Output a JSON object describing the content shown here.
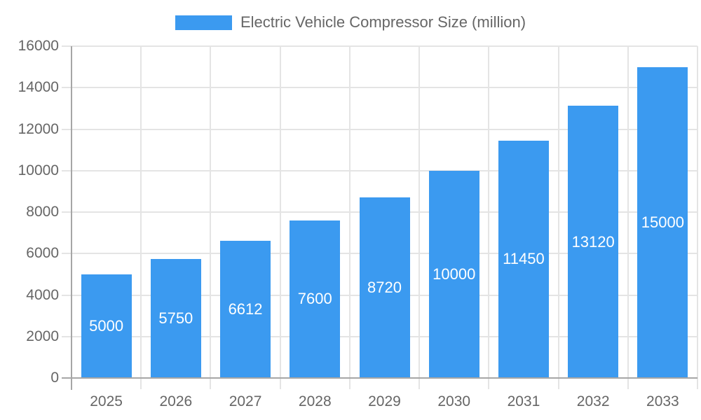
{
  "chart_data": {
    "type": "bar",
    "title": "Electric Vehicle Compressor Size (million)",
    "categories": [
      "2025",
      "2026",
      "2027",
      "2028",
      "2029",
      "2030",
      "2031",
      "2032",
      "2033"
    ],
    "series": [
      {
        "name": "Electric Vehicle Compressor Size (million)",
        "values": [
          5000,
          5750,
          6612,
          7600,
          8720,
          10000,
          11450,
          13120,
          15000
        ]
      }
    ],
    "xlabel": "",
    "ylabel": "",
    "ylim": [
      0,
      16000
    ],
    "yticks": [
      0,
      2000,
      4000,
      6000,
      8000,
      10000,
      12000,
      14000,
      16000
    ],
    "grid": true,
    "legend_position": "top",
    "value_labels": {
      "position": "center-inside-bar",
      "color": "#ffffff"
    },
    "colors": {
      "bar": "#3B9AF0",
      "gridline": "#E4E4E4",
      "axis_line": "#A6A6A6",
      "tick_text": "#666666",
      "legend_text": "#666666"
    }
  }
}
